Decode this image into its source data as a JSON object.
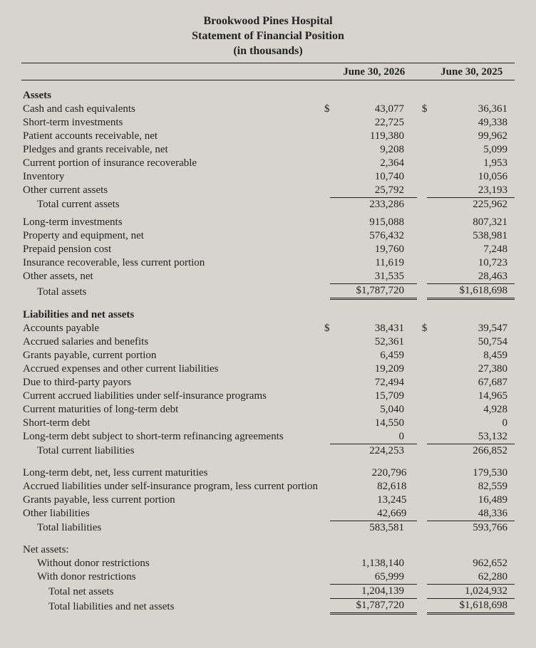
{
  "header": {
    "l1": "Brookwood Pines Hospital",
    "l2": "Statement of Financial Position",
    "l3": "(in thousands)"
  },
  "cols": {
    "c1": "June 30, 2026",
    "c2": "June 30, 2025"
  },
  "assets_title": "Assets",
  "assets": [
    {
      "label": "Cash and cash equivalents",
      "s1": "$",
      "v1": "43,077",
      "s2": "$",
      "v2": "36,361"
    },
    {
      "label": "Short-term investments",
      "v1": "22,725",
      "v2": "49,338"
    },
    {
      "label": "Patient accounts receivable, net",
      "v1": "119,380",
      "v2": "99,962"
    },
    {
      "label": "Pledges and grants receivable, net",
      "v1": "9,208",
      "v2": "5,099"
    },
    {
      "label": "Current portion of insurance recoverable",
      "v1": "2,364",
      "v2": "1,953"
    },
    {
      "label": "Inventory",
      "v1": "10,740",
      "v2": "10,056"
    },
    {
      "label": "Other current assets",
      "v1": "25,792",
      "v2": "23,193"
    }
  ],
  "tca": {
    "label": "Total current assets",
    "v1": "233,286",
    "v2": "225,962"
  },
  "lta": [
    {
      "label": "Long-term investments",
      "v1": "915,088",
      "v2": "807,321"
    },
    {
      "label": "Property and equipment, net",
      "v1": "576,432",
      "v2": "538,981"
    },
    {
      "label": "Prepaid pension cost",
      "v1": "19,760",
      "v2": "7,248"
    },
    {
      "label": "Insurance recoverable, less current portion",
      "v1": "11,619",
      "v2": "10,723"
    },
    {
      "label": "Other assets, net",
      "v1": "31,535",
      "v2": "28,463"
    }
  ],
  "ta": {
    "label": "Total assets",
    "v1": "$1,787,720",
    "v2": "$1,618,698"
  },
  "liab_title": "Liabilities and net assets",
  "cl": [
    {
      "label": "Accounts payable",
      "s1": "$",
      "v1": "38,431",
      "s2": "$",
      "v2": "39,547"
    },
    {
      "label": "Accrued salaries and benefits",
      "v1": "52,361",
      "v2": "50,754"
    },
    {
      "label": "Grants payable, current portion",
      "v1": "6,459",
      "v2": "8,459"
    },
    {
      "label": "Accrued expenses and other current liabilities",
      "v1": "19,209",
      "v2": "27,380"
    },
    {
      "label": "Due to third-party payors",
      "v1": "72,494",
      "v2": "67,687"
    },
    {
      "label": "Current accrued liabilities under self-insurance programs",
      "v1": "15,709",
      "v2": "14,965"
    },
    {
      "label": "Current maturities of long-term debt",
      "v1": "5,040",
      "v2": "4,928"
    },
    {
      "label": "Short-term debt",
      "v1": "14,550",
      "v2": "0"
    },
    {
      "label": "Long-term debt subject to short-term refinancing agreements",
      "v1": "0",
      "v2": "53,132"
    }
  ],
  "tcl": {
    "label": "Total current liabilities",
    "v1": "224,253",
    "v2": "266,852"
  },
  "ltl": [
    {
      "label": "Long-term debt, net, less current maturities",
      "v1": "220,796",
      "v2": "179,530"
    },
    {
      "label": "Accrued liabilities under self-insurance program, less current portion",
      "v1": "82,618",
      "v2": "82,559"
    },
    {
      "label": "Grants payable, less current portion",
      "v1": "13,245",
      "v2": "16,489"
    },
    {
      "label": "Other liabilities",
      "v1": "42,669",
      "v2": "48,336"
    }
  ],
  "tl": {
    "label": "Total liabilities",
    "v1": "583,581",
    "v2": "593,766"
  },
  "na_title": "Net assets:",
  "na": [
    {
      "label": "Without donor restrictions",
      "v1": "1,138,140",
      "v2": "962,652"
    },
    {
      "label": "With donor restrictions",
      "v1": "65,999",
      "v2": "62,280"
    }
  ],
  "tna": {
    "label": "Total net assets",
    "v1": "1,204,139",
    "v2": "1,024,932"
  },
  "tlna": {
    "label": "Total liabilities and net assets",
    "v1": "$1,787,720",
    "v2": "$1,618,698"
  }
}
